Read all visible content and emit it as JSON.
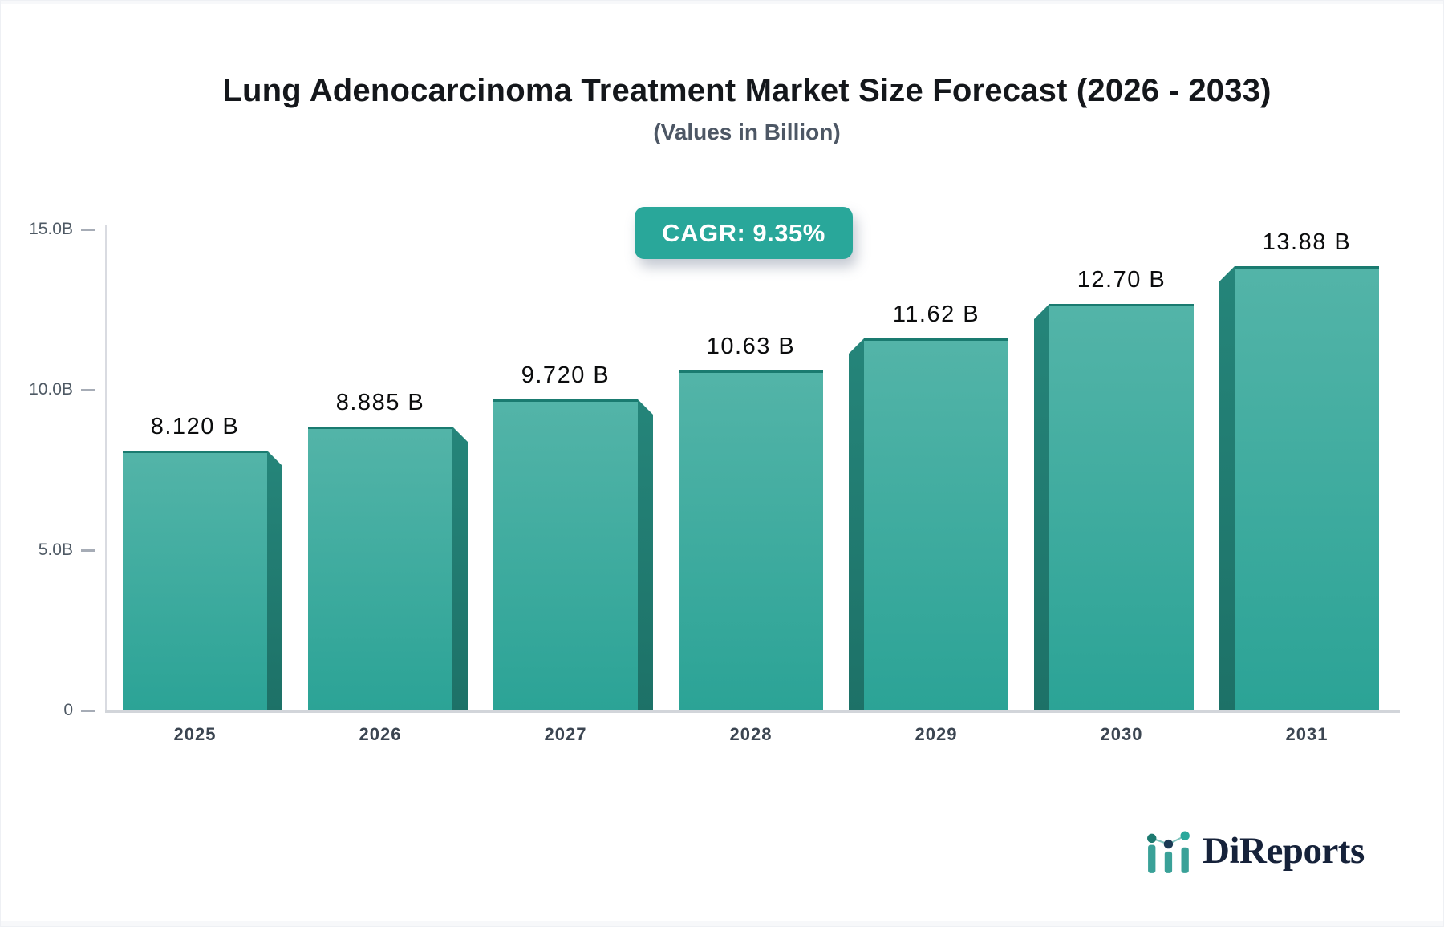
{
  "title": "Lung Adenocarcinoma Treatment Market Size Forecast (2026 - 2033)",
  "subtitle": "(Values in Billion)",
  "badge": {
    "label": "CAGR: 9.35%"
  },
  "brand": {
    "name": "DiReports"
  },
  "colors": {
    "accent_teal": "#29a79a",
    "bar_top": "#53b4a8",
    "bar_bottom": "#2ba396",
    "bar_shadow": "#1f7c72",
    "axis_line": "#d5d8de",
    "logo_navy": "#16223a",
    "logo_teal": "#3aa198"
  },
  "chart_data": {
    "type": "bar",
    "title": "Lung Adenocarcinoma Treatment Market Size Forecast (2026 - 2033)",
    "subtitle": "(Values in Billion)",
    "cagr": "9.35%",
    "categories": [
      "2025",
      "2026",
      "2027",
      "2028",
      "2029",
      "2030",
      "2031"
    ],
    "values": [
      8.12,
      8.885,
      9.72,
      10.63,
      11.62,
      12.7,
      13.88
    ],
    "value_labels": [
      "8.120 B",
      "8.885 B",
      "9.720 B",
      "10.63 B",
      "11.62 B",
      "12.70 B",
      "13.88 B"
    ],
    "unit_suffix": "B",
    "xlabel": "",
    "ylabel": "",
    "ylim": [
      0,
      15
    ],
    "y_ticks": [
      {
        "value": 15,
        "label": "15.0B"
      },
      {
        "value": 10,
        "label": "10.0B"
      },
      {
        "value": 5,
        "label": "5.0B"
      },
      {
        "value": 0,
        "label": "0"
      }
    ],
    "grid": false,
    "legend": "none",
    "bar_style": "3d-extruded, shadow extrudes right for bars left of center, left for bars right of center"
  }
}
